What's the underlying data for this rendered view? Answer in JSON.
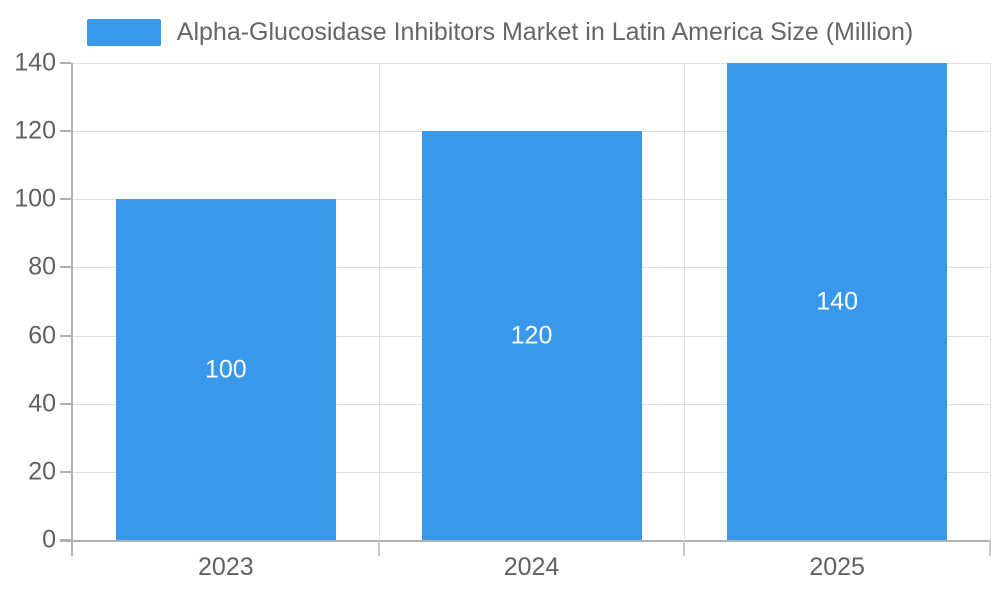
{
  "legend": {
    "label": "Alpha-Glucosidase Inhibitors Market in Latin America Size (Million)",
    "swatch_color": "#3899ec"
  },
  "chart_data": {
    "type": "bar",
    "title": "",
    "categories": [
      "2023",
      "2024",
      "2025"
    ],
    "series": [
      {
        "name": "Alpha-Glucosidase Inhibitors Market in Latin America Size (Million)",
        "values": [
          100,
          120,
          140
        ],
        "color": "#3899ec"
      }
    ],
    "data_labels": [
      "100",
      "120",
      "140"
    ],
    "xlabel": "",
    "ylabel": "",
    "ylim": [
      0,
      140
    ],
    "yticks": [
      0,
      20,
      40,
      60,
      80,
      100,
      120,
      140
    ],
    "grid": true,
    "legend_position": "top",
    "data_label_color": "#ffffff"
  },
  "colors": {
    "axis": "#b0b0b0",
    "gridline": "#e0e0e0",
    "tick_text": "#616161",
    "legend_text": "#666666",
    "background": "#ffffff"
  }
}
